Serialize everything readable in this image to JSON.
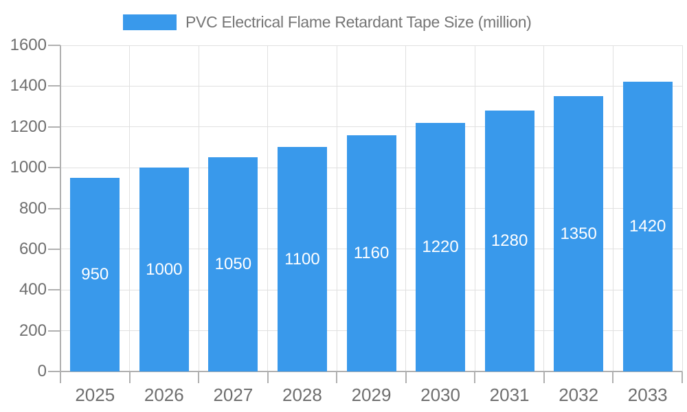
{
  "legend": {
    "label": "PVC Electrical Flame Retardant Tape Size (million)"
  },
  "chart_data": {
    "type": "bar",
    "title": "PVC Electrical Flame Retardant Tape Size (million)",
    "categories": [
      "2025",
      "2026",
      "2027",
      "2028",
      "2029",
      "2030",
      "2031",
      "2032",
      "2033"
    ],
    "series": [
      {
        "name": "PVC Electrical Flame Retardant Tape Size (million)",
        "values": [
          950,
          1000,
          1050,
          1100,
          1160,
          1220,
          1280,
          1350,
          1420
        ]
      }
    ],
    "value_labels": [
      "950",
      "1000",
      "1050",
      "1100",
      "1160",
      "1220",
      "1280",
      "1350",
      "1420"
    ],
    "xlabel": "",
    "ylabel": "",
    "ylim": [
      0,
      1600
    ],
    "ytick_interval": 200,
    "ytick_labels": [
      "0",
      "200",
      "400",
      "600",
      "800",
      "1000",
      "1200",
      "1400",
      "1600"
    ],
    "grid": true,
    "legend_position": "top",
    "colors": {
      "bar": "#3999EB",
      "value_label": "#FFFFFF",
      "axis": "#B0B0B0",
      "grid": "#E0E0E0",
      "tick_label": "#6E6E6E",
      "legend_text": "#757575"
    }
  }
}
